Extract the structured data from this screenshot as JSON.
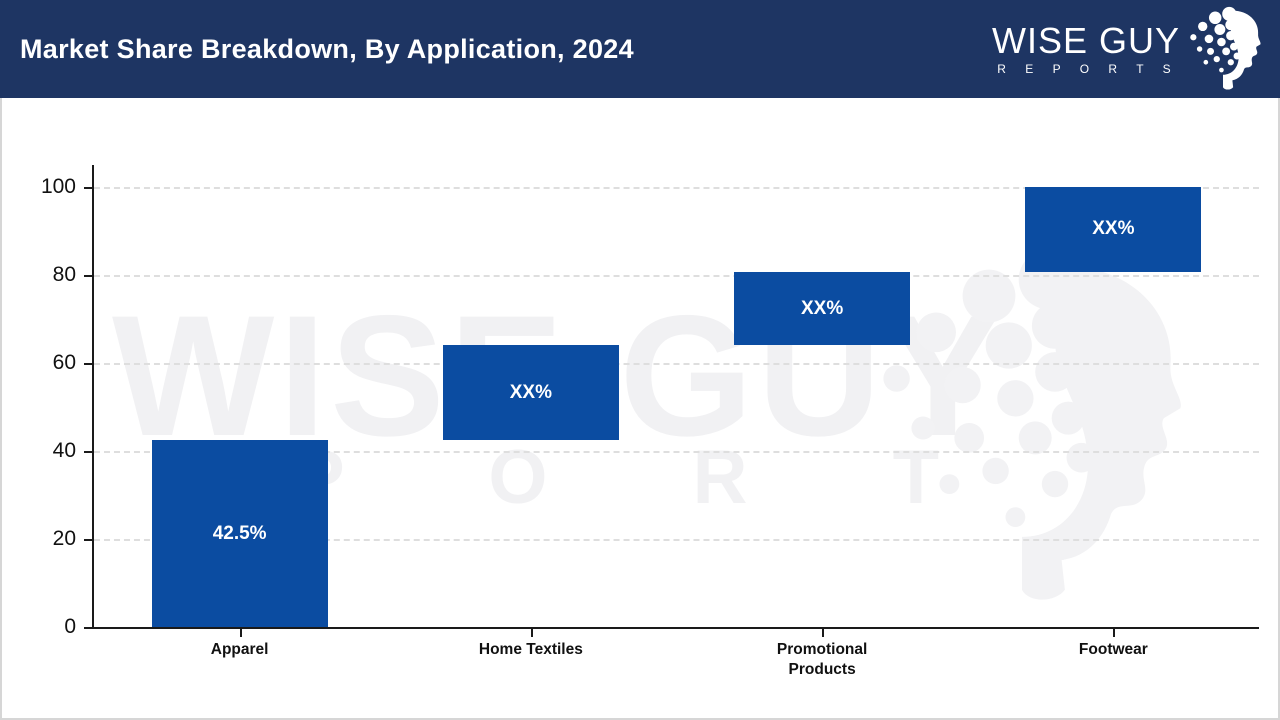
{
  "header": {
    "title": "Market Share Breakdown, By Application, 2024",
    "bg_color": "#1e3563",
    "logo_line1": "WISE GUY",
    "logo_line2": "R E P O R T S"
  },
  "watermark": {
    "text_line1": "WISE GUY",
    "text_line2": "P O R T S"
  },
  "chart_data": {
    "type": "bar",
    "subtype": "waterfall",
    "title": "Market Share Breakdown, By Application, 2024",
    "categories": [
      "Apparel",
      "Home Textiles",
      "Promotional Products",
      "Footwear"
    ],
    "segments": [
      {
        "category": "Apparel",
        "start": 0,
        "end": 42.5,
        "label": "42.5%"
      },
      {
        "category": "Home Textiles",
        "start": 42.5,
        "end": 64,
        "label": "XX%"
      },
      {
        "category": "Promotional Products",
        "start": 64,
        "end": 80.7,
        "label": "XX%"
      },
      {
        "category": "Footwear",
        "start": 80.7,
        "end": 100,
        "label": "XX%"
      }
    ],
    "yticks": [
      0,
      20,
      40,
      60,
      80,
      100
    ],
    "ylim": [
      0,
      105
    ],
    "xlabel": "",
    "ylabel": "",
    "bar_color": "#0b4ca1",
    "bar_label_color": "#ffffff",
    "grid": "horizontal-dashed",
    "legend": "none"
  }
}
